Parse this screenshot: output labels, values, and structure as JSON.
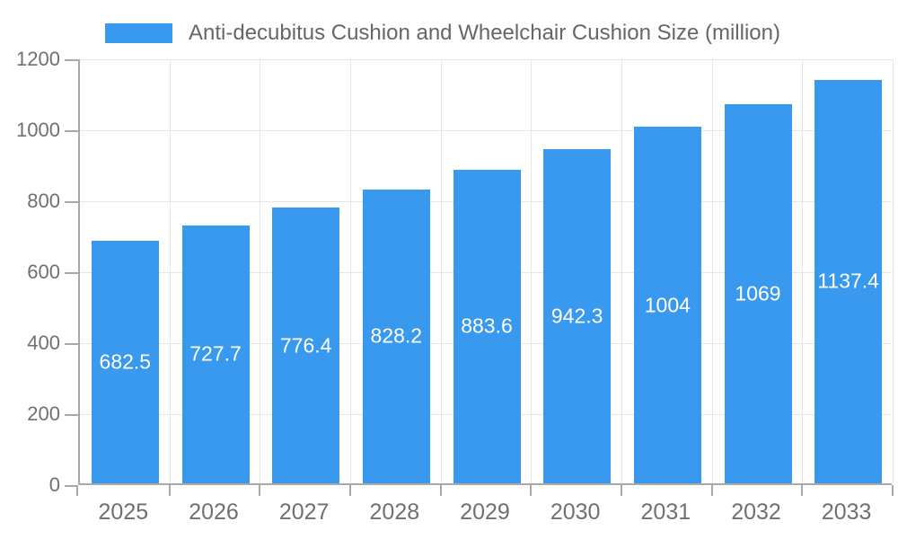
{
  "legend": {
    "label": "Anti-decubitus Cushion and Wheelchair Cushion Size (million)"
  },
  "chart_data": {
    "type": "bar",
    "title": "Anti-decubitus Cushion and Wheelchair Cushion Size (million)",
    "categories": [
      "2025",
      "2026",
      "2027",
      "2028",
      "2029",
      "2030",
      "2031",
      "2032",
      "2033"
    ],
    "values": [
      682.5,
      727.7,
      776.4,
      828.2,
      883.6,
      942.3,
      1004,
      1069,
      1137.4
    ],
    "value_labels": [
      "682.5",
      "727.7",
      "776.4",
      "828.2",
      "883.6",
      "942.3",
      "1004",
      "1069",
      "1137.4"
    ],
    "xlabel": "",
    "ylabel": "",
    "ylim": [
      0,
      1200
    ],
    "ytick_step": 200,
    "ytick_labels": [
      "0",
      "200",
      "400",
      "600",
      "800",
      "1000",
      "1200"
    ],
    "grid": true,
    "legend_position": "top",
    "colors": {
      "bar": "#3999ee",
      "bar_value_text": "#ffffff",
      "grid_line": "#e6e6e6",
      "axis_line": "#a8a8a8",
      "tick_text": "#707070",
      "legend_text": "#666666",
      "background": "#ffffff"
    }
  }
}
